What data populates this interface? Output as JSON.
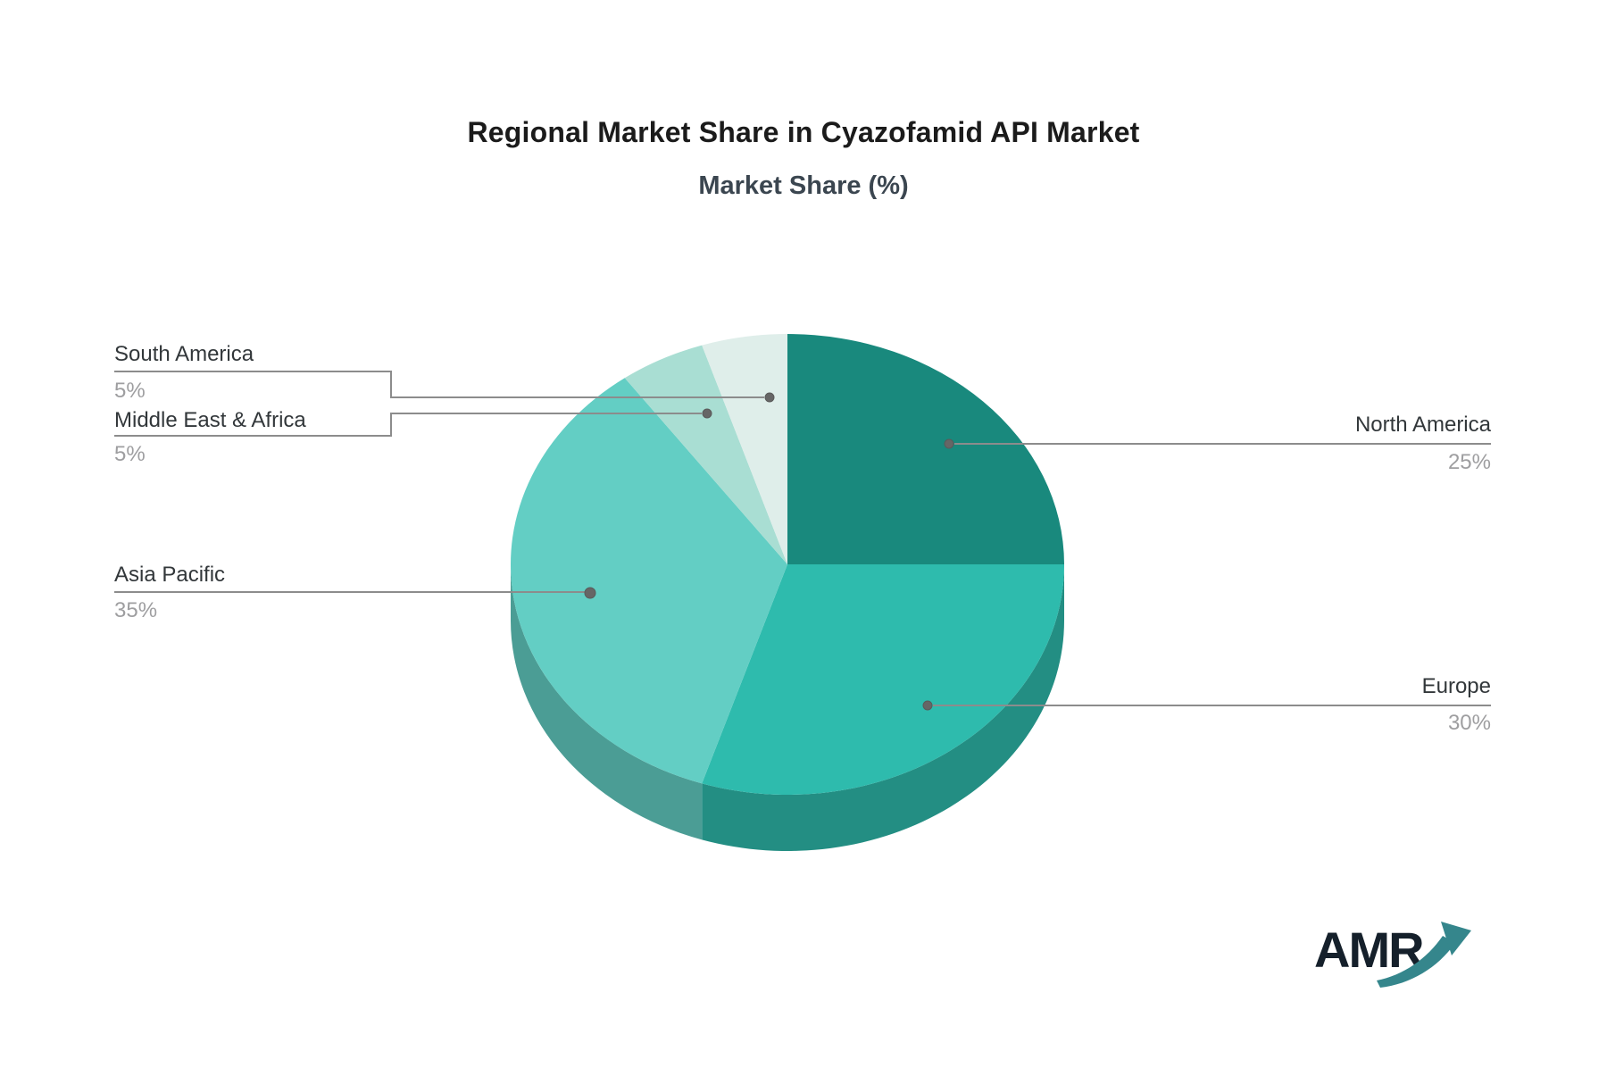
{
  "header": {
    "title": "Regional Market Share in Cyazofamid API Market",
    "subtitle": "Market Share (%)"
  },
  "chart_data": {
    "type": "pie",
    "title": "Regional Market Share in Cyazofamid API Market",
    "subtitle": "Market Share (%)",
    "unit": "%",
    "style": "3d",
    "direction": "clockwise",
    "start_angle_deg": 0,
    "label_style": "callout",
    "legend": "none",
    "leader_line_color": "#8C8C8C",
    "leader_dot_color": "#666666",
    "label_color": "#32373A",
    "value_color": "#9E9EA0",
    "slices": [
      {
        "label": "North America",
        "value": 25,
        "value_text": "25%",
        "color": "#19897D"
      },
      {
        "label": "Europe",
        "value": 30,
        "value_text": "30%",
        "color": "#2EBBAD"
      },
      {
        "label": "Asia Pacific",
        "value": 35,
        "value_text": "35%",
        "color": "#63CEC4"
      },
      {
        "label": "Middle East & Africa",
        "value": 5,
        "value_text": "5%",
        "color": "#A9DED3"
      },
      {
        "label": "South America",
        "value": 5,
        "value_text": "5%",
        "color": "#DFEEEA"
      }
    ]
  },
  "logo": {
    "text": "AMR",
    "arrow_icon": "trend-up-arrow-icon",
    "text_color": "#15202B",
    "arrow_color": "#35868C"
  }
}
